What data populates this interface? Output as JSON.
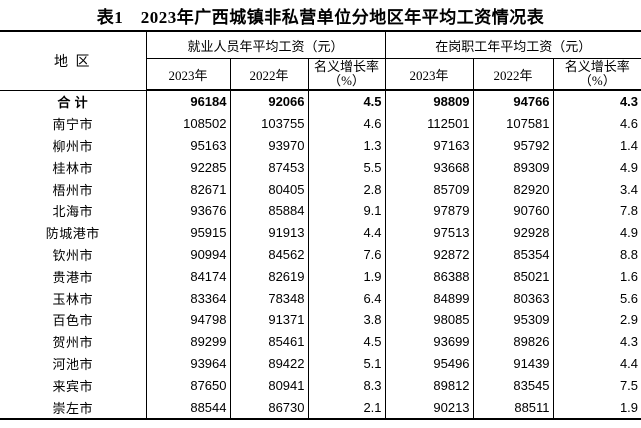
{
  "title": "表1　2023年广西城镇非私营单位分地区年平均工资情况表",
  "table": {
    "headers": {
      "region": "地  区",
      "group1": "就业人员年平均工资（元）",
      "group2": "在岗职工年平均工资（元）",
      "y2023": "2023年",
      "y2022": "2022年",
      "growth_line1": "名义增长率",
      "growth_line2": "（%）"
    },
    "rows": [
      {
        "region": "合 计",
        "bold": true,
        "values": [
          "96184",
          "92066",
          "4.5",
          "98809",
          "94766",
          "4.3"
        ]
      },
      {
        "region": "南宁市",
        "bold": false,
        "values": [
          "108502",
          "103755",
          "4.6",
          "112501",
          "107581",
          "4.6"
        ]
      },
      {
        "region": "柳州市",
        "bold": false,
        "values": [
          "95163",
          "93970",
          "1.3",
          "97163",
          "95792",
          "1.4"
        ]
      },
      {
        "region": "桂林市",
        "bold": false,
        "values": [
          "92285",
          "87453",
          "5.5",
          "93668",
          "89309",
          "4.9"
        ]
      },
      {
        "region": "梧州市",
        "bold": false,
        "values": [
          "82671",
          "80405",
          "2.8",
          "85709",
          "82920",
          "3.4"
        ]
      },
      {
        "region": "北海市",
        "bold": false,
        "values": [
          "93676",
          "85884",
          "9.1",
          "97879",
          "90760",
          "7.8"
        ]
      },
      {
        "region": "防城港市",
        "bold": false,
        "values": [
          "95915",
          "91913",
          "4.4",
          "97513",
          "92928",
          "4.9"
        ]
      },
      {
        "region": "钦州市",
        "bold": false,
        "values": [
          "90994",
          "84562",
          "7.6",
          "92872",
          "85354",
          "8.8"
        ]
      },
      {
        "region": "贵港市",
        "bold": false,
        "values": [
          "84174",
          "82619",
          "1.9",
          "86388",
          "85021",
          "1.6"
        ]
      },
      {
        "region": "玉林市",
        "bold": false,
        "values": [
          "83364",
          "78348",
          "6.4",
          "84899",
          "80363",
          "5.6"
        ]
      },
      {
        "region": "百色市",
        "bold": false,
        "values": [
          "94798",
          "91371",
          "3.8",
          "98085",
          "95309",
          "2.9"
        ]
      },
      {
        "region": "贺州市",
        "bold": false,
        "values": [
          "89299",
          "85461",
          "4.5",
          "93699",
          "89826",
          "4.3"
        ]
      },
      {
        "region": "河池市",
        "bold": false,
        "values": [
          "93964",
          "89422",
          "5.1",
          "95496",
          "91439",
          "4.4"
        ]
      },
      {
        "region": "来宾市",
        "bold": false,
        "values": [
          "87650",
          "80941",
          "8.3",
          "89812",
          "83545",
          "7.5"
        ]
      },
      {
        "region": "崇左市",
        "bold": false,
        "values": [
          "88544",
          "86730",
          "2.1",
          "90213",
          "88511",
          "1.9"
        ]
      }
    ]
  }
}
